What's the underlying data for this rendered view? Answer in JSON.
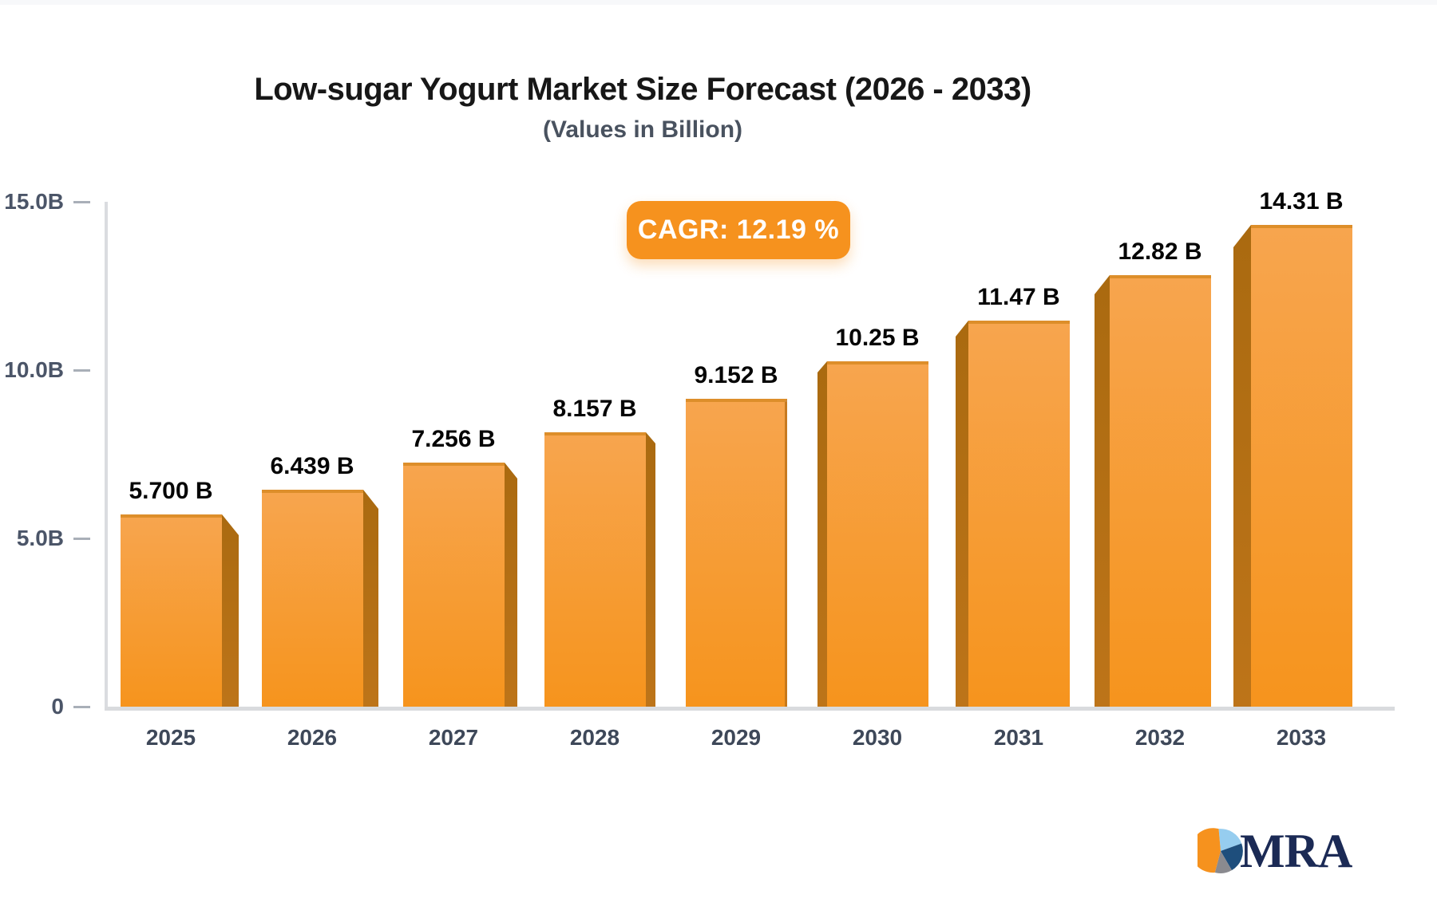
{
  "page": {
    "background_color": "#ffffff",
    "top_strip_color": "#f7f8fa"
  },
  "chart": {
    "title": "Low-sugar Yogurt Market Size Forecast (2026 - 2033)",
    "subtitle": "(Values in Billion)",
    "cagr_label": "CAGR: 12.19 %",
    "cagr_badge_color": "#F6921E"
  },
  "chart_data": {
    "type": "bar",
    "title": "Low-sugar Yogurt Market Size Forecast (2026 - 2033)",
    "subtitle": "(Values in Billion)",
    "categories": [
      "2025",
      "2026",
      "2027",
      "2028",
      "2029",
      "2030",
      "2031",
      "2032",
      "2033"
    ],
    "values": [
      5.7,
      6.439,
      7.256,
      8.157,
      9.152,
      10.25,
      11.47,
      12.82,
      14.31
    ],
    "value_labels": [
      "5.700 B",
      "6.439 B",
      "7.256 B",
      "8.157 B",
      "9.152 B",
      "10.25 B",
      "11.47 B",
      "12.82 B",
      "14.31 B"
    ],
    "unit": "Billion",
    "yticks": [
      {
        "label": "15.0B",
        "value": 15
      },
      {
        "label": "10.0B",
        "value": 10
      },
      {
        "label": "5.0B",
        "value": 5
      },
      {
        "label": "0",
        "value": 0
      }
    ],
    "ylim": [
      0,
      15
    ],
    "xlabel": "",
    "ylabel": "",
    "grid": false,
    "legend": "none",
    "annotations": [
      "CAGR: 12.19 %"
    ],
    "bar_colors": {
      "face_top": "#f7a54e",
      "face_bottom": "#f6941d",
      "side": "#b57018",
      "top_edge": "#dd8e2a"
    }
  },
  "logo": {
    "text": "MRA",
    "text_color": "#1b2a55",
    "pie_colors": {
      "orange": "#F6921E",
      "light_blue": "#96CDEF",
      "navy": "#1E4E7C",
      "gray": "#8A8A8F"
    }
  }
}
